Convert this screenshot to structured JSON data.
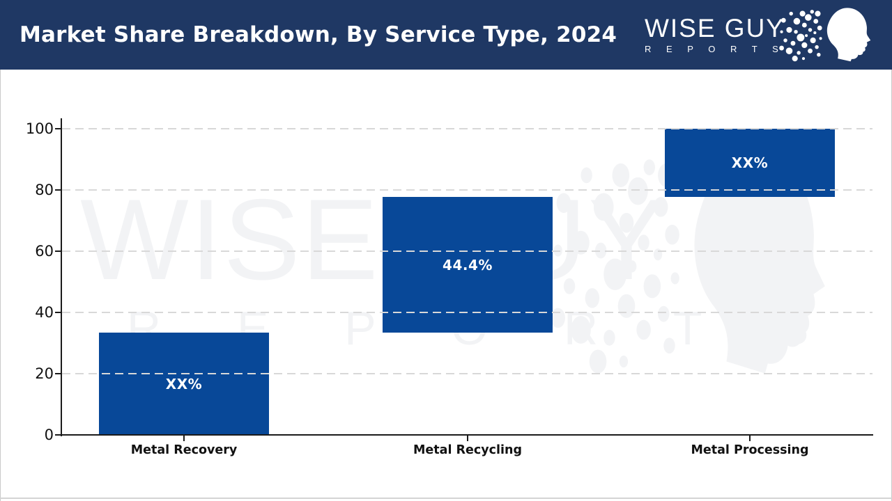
{
  "header": {
    "title": "Market Share Breakdown, By Service Type, 2024",
    "logo_line1": "WISE GUY",
    "logo_line2": "R E P O R T S"
  },
  "watermark": {
    "text_large": "WISE GUY",
    "text_small": "R E P O R T S"
  },
  "chart_data": {
    "type": "bar",
    "subtype": "floating-segment-bars (stacked percentage breakdown)",
    "title": "Market Share Breakdown, By Service Type, 2024",
    "categories": [
      "Metal Recovery",
      "Metal Recycling",
      "Metal Processing"
    ],
    "segments": [
      {
        "category": "Metal Recovery",
        "start": 0,
        "end": 33.3,
        "value_label": "XX%"
      },
      {
        "category": "Metal Recycling",
        "start": 33.3,
        "end": 77.7,
        "value_label": "44.4%"
      },
      {
        "category": "Metal Processing",
        "start": 77.7,
        "end": 100,
        "value_label": "XX%"
      }
    ],
    "xlabel": "",
    "ylabel": "",
    "ylim": [
      0,
      100
    ],
    "yticks": [
      "0",
      "20",
      "40",
      "60",
      "80",
      "100"
    ],
    "grid": "horizontal dashed",
    "legend": "none",
    "colors": {
      "bar": "#084898",
      "header_bg": "#1f3864",
      "gridline": "#d8d8d8",
      "axis": "#1a1a1a",
      "bar_label": "#ffffff",
      "watermark": "#f2f3f5"
    }
  }
}
